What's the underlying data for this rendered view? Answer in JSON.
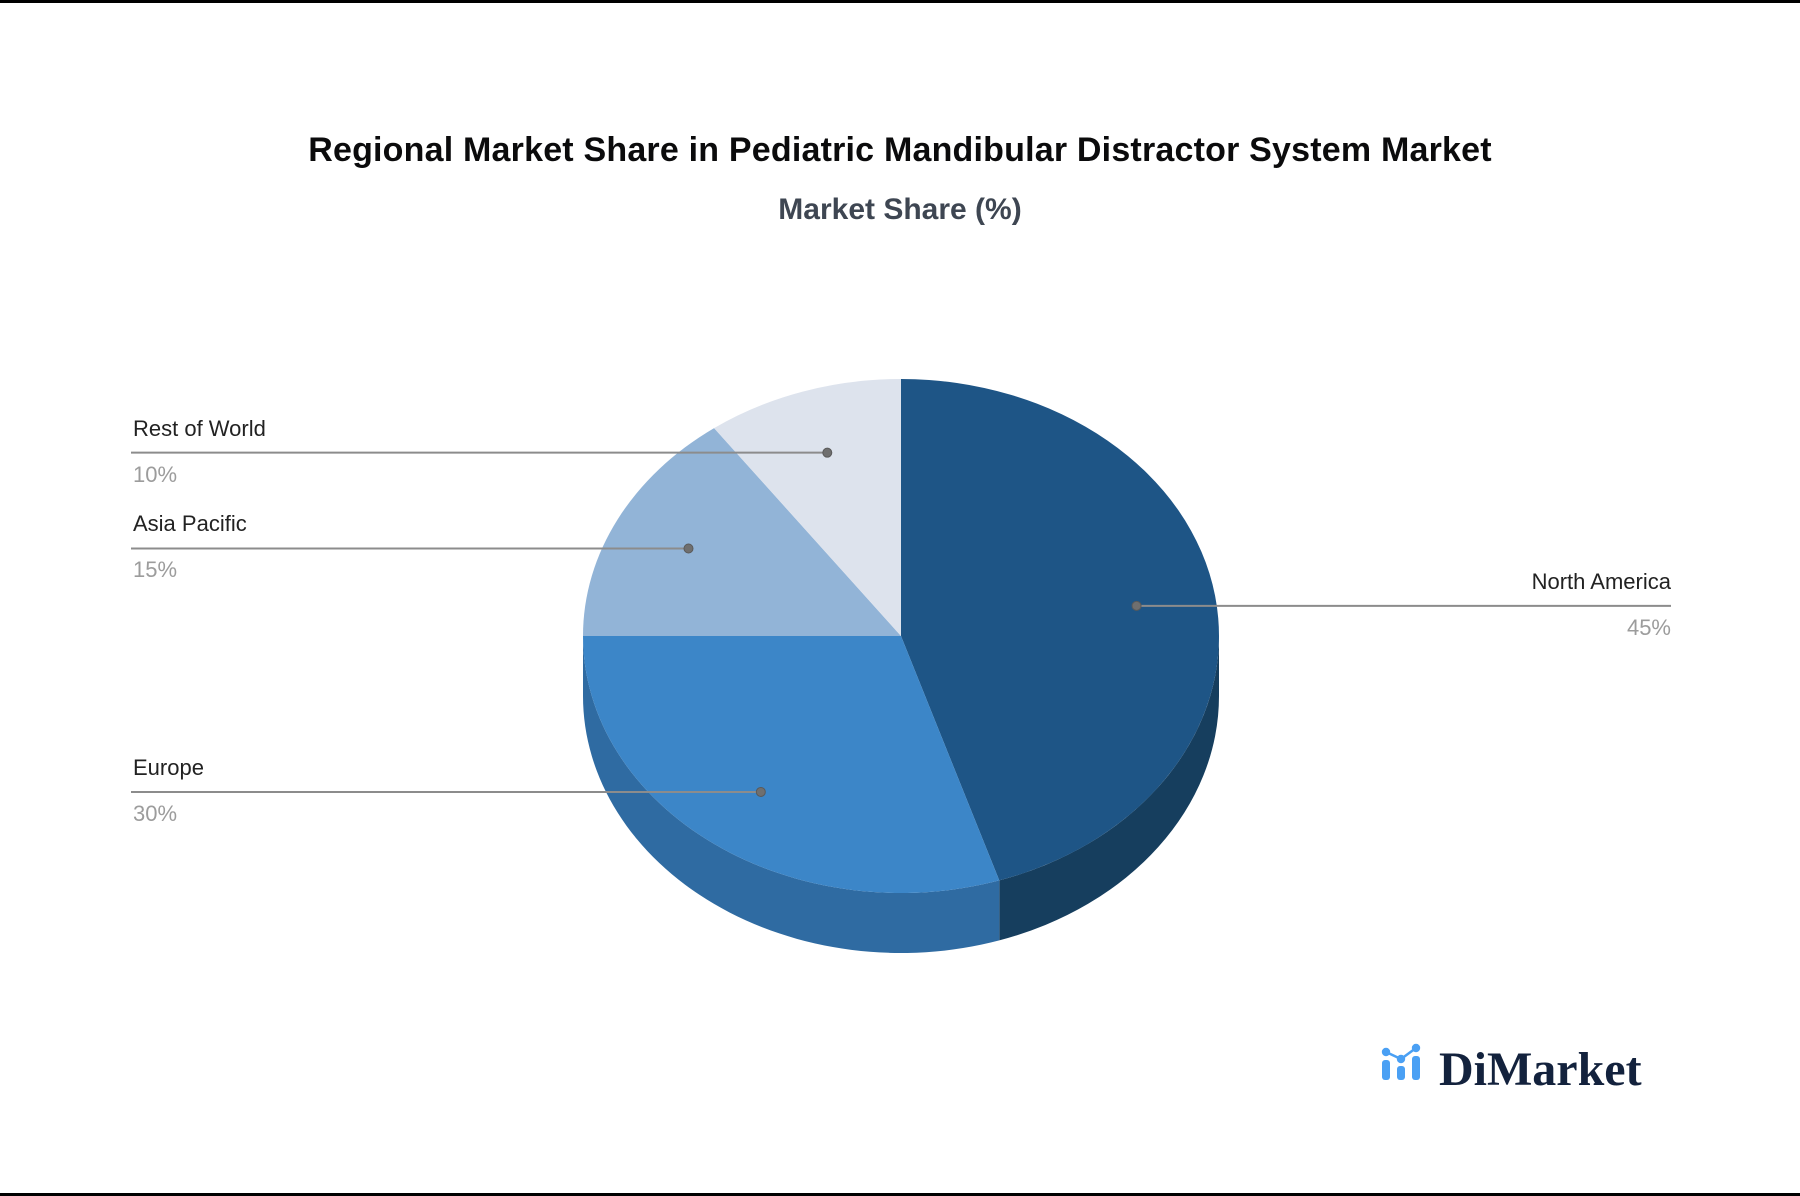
{
  "chart_data": {
    "type": "pie",
    "title": "Regional Market Share in Pediatric Mandibular Distractor System Market",
    "subtitle": "Market Share (%)",
    "is_3d": true,
    "start_angle_deg": 0,
    "direction": "clockwise",
    "legend_position": "none",
    "label_style": "callout-lines",
    "slices": [
      {
        "name": "North America",
        "value": 45,
        "pct_label": "45%",
        "color": "#1E5586",
        "side_color": "#163E5E"
      },
      {
        "name": "Europe",
        "value": 30,
        "pct_label": "30%",
        "color": "#3C86C8",
        "side_color": "#2F6BA2"
      },
      {
        "name": "Asia Pacific",
        "value": 15,
        "pct_label": "15%",
        "color": "#92B4D7",
        "side_color": "#7A9CC2"
      },
      {
        "name": "Rest of World",
        "value": 10,
        "pct_label": "10%",
        "color": "#DDE3ED",
        "side_color": "#BCC6D6"
      }
    ]
  },
  "branding": {
    "logo_text": "DiMarket",
    "logo_icon": "bar-line-chart-icon",
    "logo_text_color": "#13223D",
    "logo_icon_color": "#4AA0F4"
  },
  "style": {
    "connector_color": "#8C8C8C",
    "connector_dot_color": "#6F6F6F",
    "label_color": "#222222",
    "pct_color": "#9C9C9C",
    "title_color": "#0B0B0C",
    "subtitle_color": "#3E4652",
    "background": "#FFFFFF"
  }
}
